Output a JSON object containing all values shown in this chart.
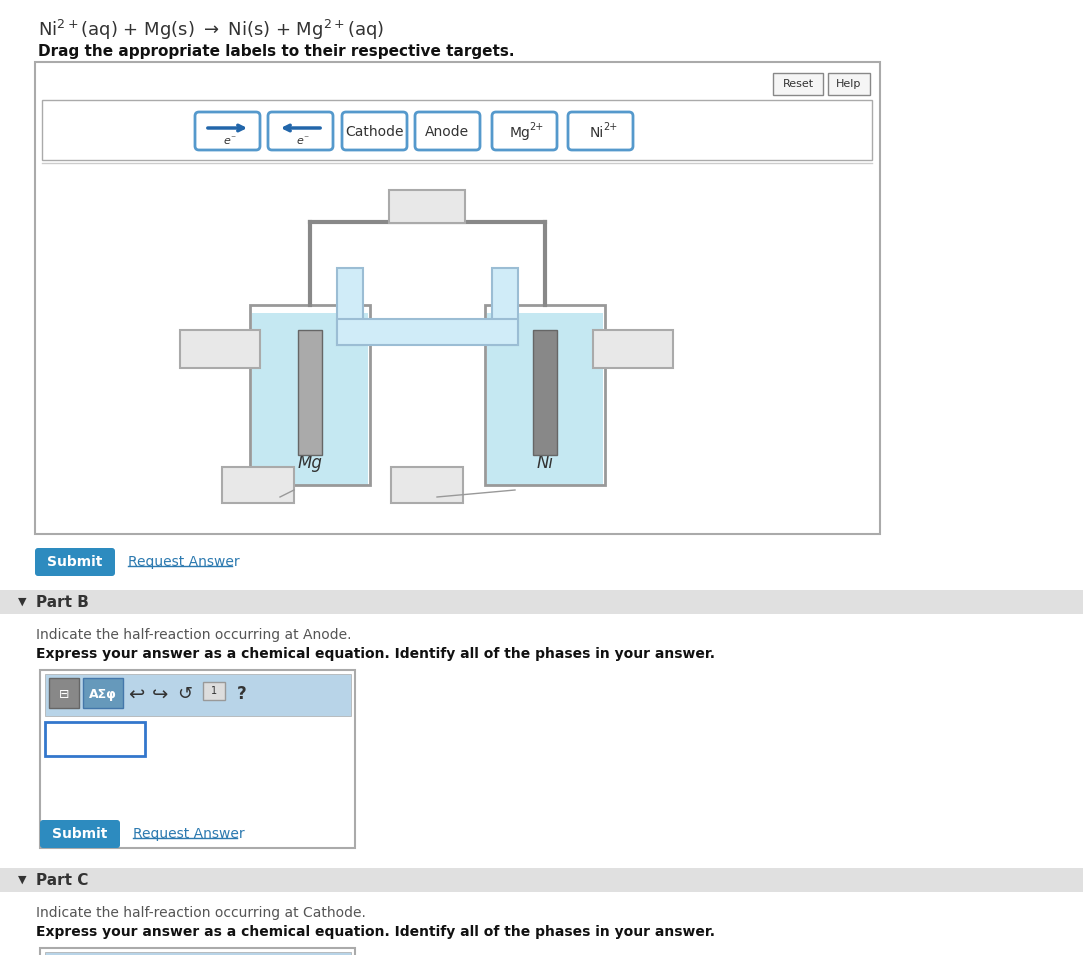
{
  "title_equation": "Ni²⁺(aq) + Mg(s) → Ni(s) + Mg²⁺(aq)",
  "subtitle": "Drag the appropriate labels to their respective targets.",
  "bg_color": "#ffffff",
  "part_b_header": "Part B",
  "part_b_instruction": "Indicate the half-reaction occurring at Anode.",
  "part_b_instruction2": "Express your answer as a chemical equation. Identify all of the phases in your answer.",
  "part_c_header": "Part C",
  "part_c_instruction": "Indicate the half-reaction occurring at Cathode.",
  "part_c_instruction2": "Express your answer as a chemical equation. Identify all of the phases in your answer.",
  "submit_color": "#2d8bbf",
  "toolbar_bg": "#b8d4e8",
  "section_bg": "#e0e0e0"
}
